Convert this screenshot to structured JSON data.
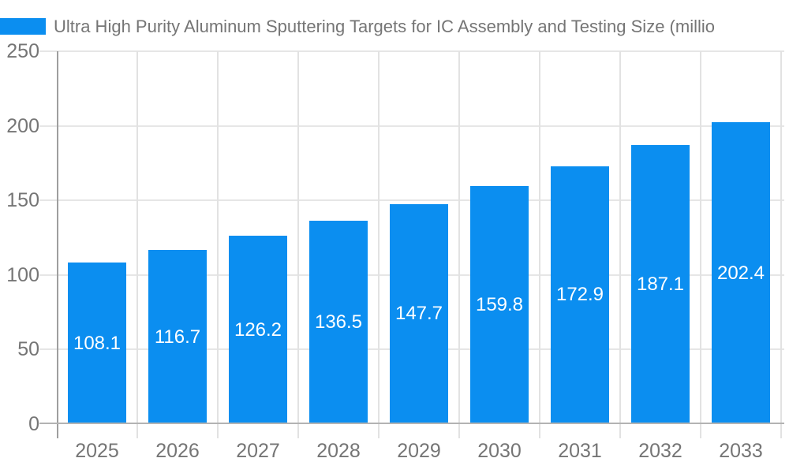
{
  "header": {
    "legend_color": "#0b8ef0"
  },
  "chart_data": {
    "type": "bar",
    "title": "Ultra High Purity Aluminum Sputtering Targets for IC Assembly and Testing Size (millio",
    "categories": [
      "2025",
      "2026",
      "2027",
      "2028",
      "2029",
      "2030",
      "2031",
      "2032",
      "2033"
    ],
    "values": [
      108.1,
      116.7,
      126.2,
      136.5,
      147.7,
      159.8,
      172.9,
      187.1,
      202.4
    ],
    "data_labels": [
      "108.1",
      "116.7",
      "126.2",
      "136.5",
      "147.7",
      "159.8",
      "172.9",
      "187.1",
      "202.4"
    ],
    "xlabel": "",
    "ylabel": "",
    "ylim": [
      0,
      250
    ],
    "yticks": [
      0,
      50,
      100,
      150,
      200,
      250
    ],
    "ytick_labels": [
      "0",
      "50",
      "100",
      "150",
      "200",
      "250"
    ],
    "grid": true,
    "legend_position": "top-left",
    "bar_color": "#0b8ef0",
    "data_label_color": "#ffffff",
    "axis_text_color": "#757575",
    "gridline_color": "#e6e6e6"
  }
}
